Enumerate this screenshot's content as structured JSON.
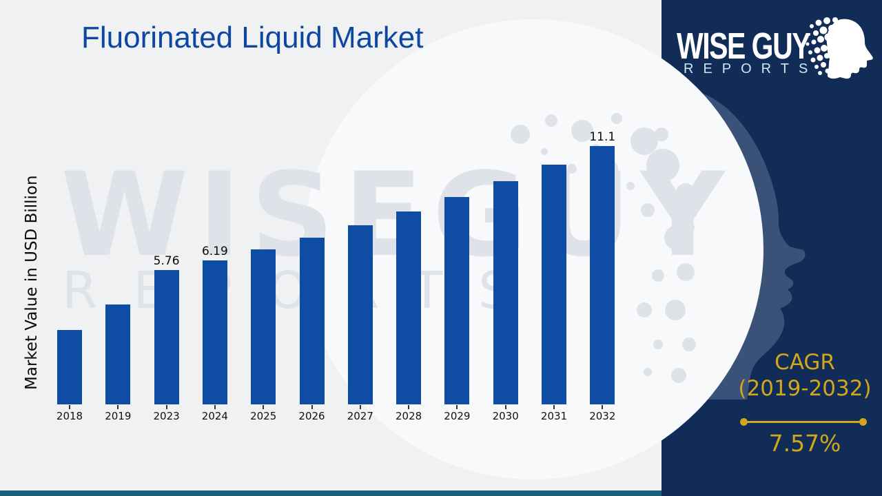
{
  "title": "Fluorinated Liquid Market",
  "watermark": {
    "line1": "WISEGUY",
    "line2": "REPORTS"
  },
  "logo": {
    "name": "WISE GUY",
    "sub": "REPORTS"
  },
  "cagr": {
    "label": "CAGR",
    "range": "(2019-2032)",
    "value": "7.57%"
  },
  "colors": {
    "background": "#eff1f3",
    "navy": "#122c58",
    "face": "#3b5278",
    "circle": "#f7f9fb",
    "teal": "#1b5f7e",
    "gold": "#d4a61b",
    "bar": "#0e4da3",
    "title_blue": "#0d47a1",
    "watermark": "#dfe3e9"
  },
  "chart_data": {
    "type": "bar",
    "title": "Fluorinated Liquid Market",
    "xlabel": "",
    "ylabel": "Market Value in USD Billion",
    "unit": "USD Billion",
    "categories": [
      "2018",
      "2019",
      "2023",
      "2024",
      "2025",
      "2026",
      "2027",
      "2028",
      "2029",
      "2030",
      "2031",
      "2032"
    ],
    "values": [
      3.2,
      4.3,
      5.76,
      6.19,
      6.66,
      7.16,
      7.7,
      8.29,
      8.91,
      9.59,
      10.31,
      11.1
    ],
    "data_labels": {
      "2023": "5.76",
      "2024": "6.19",
      "2032": "11.1"
    },
    "ylim": [
      0,
      12
    ],
    "grid": false,
    "legend": false
  }
}
